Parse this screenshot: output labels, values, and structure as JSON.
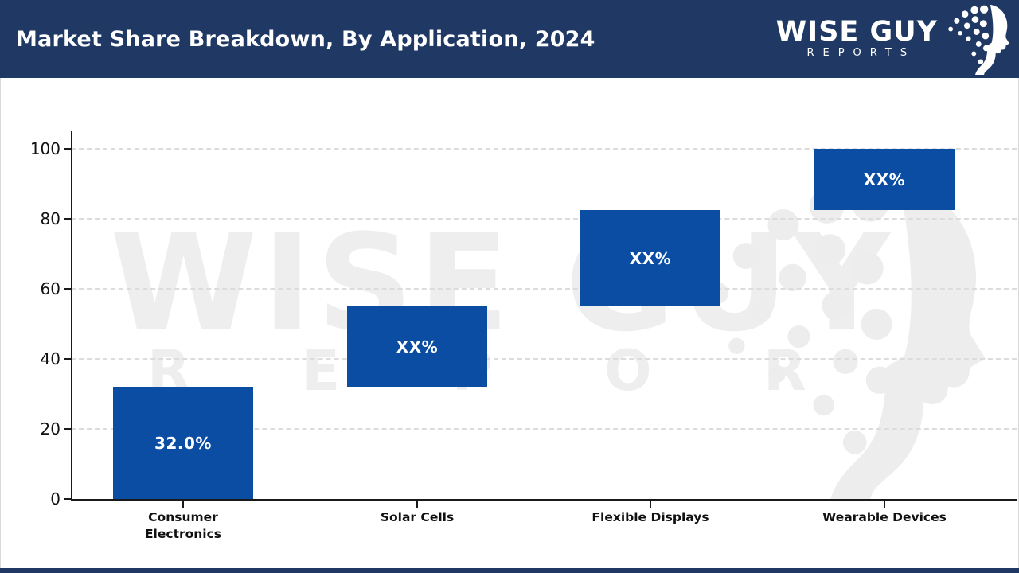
{
  "header": {
    "title": "Market Share Breakdown, By Application, 2024",
    "logo": {
      "line1": "WISE GUY",
      "line2": "REPORTS",
      "icon": "wiseguy-head-icon"
    }
  },
  "watermark": {
    "line1": "WISE GUY",
    "line2": "R E P O R T S",
    "icon": "head-dots-watermark"
  },
  "colors": {
    "header_bg": "#1f3864",
    "footer_bg": "#1f3864",
    "bar_fill": "#0b4da2",
    "bar_label_text": "#ffffff",
    "grid_line": "#dcdcdc",
    "axis_line": "#1a1a1a",
    "watermark": "#eeeeee",
    "title_text": "#ffffff",
    "tick_text": "#111111"
  },
  "chart_data": {
    "type": "bar",
    "subtype": "waterfall",
    "title": "Market Share Breakdown, By Application, 2024",
    "xlabel": "",
    "ylabel": "",
    "ylim": [
      0,
      100
    ],
    "yticks": [
      0,
      20,
      40,
      60,
      80,
      100
    ],
    "grid": "horizontal dashed",
    "legend": "none",
    "categories": [
      "Consumer Electronics",
      "Solar Cells",
      "Flexible Displays",
      "Wearable Devices"
    ],
    "values": [
      32.0,
      23.0,
      27.5,
      17.5
    ],
    "bars": [
      {
        "category": "Consumer Electronics",
        "category_lines": [
          "Consumer",
          "Electronics"
        ],
        "start": 0,
        "end": 32,
        "label": "32.0%"
      },
      {
        "category": "Solar Cells",
        "category_lines": [
          "Solar Cells"
        ],
        "start": 32,
        "end": 55,
        "label": "XX%"
      },
      {
        "category": "Flexible Displays",
        "category_lines": [
          "Flexible Displays"
        ],
        "start": 55,
        "end": 82.5,
        "label": "XX%"
      },
      {
        "category": "Wearable Devices",
        "category_lines": [
          "Wearable Devices"
        ],
        "start": 82.5,
        "end": 100,
        "label": "XX%"
      }
    ],
    "note": "Waterfall-style stacked market share; labels other than first bar are masked as XX%"
  }
}
